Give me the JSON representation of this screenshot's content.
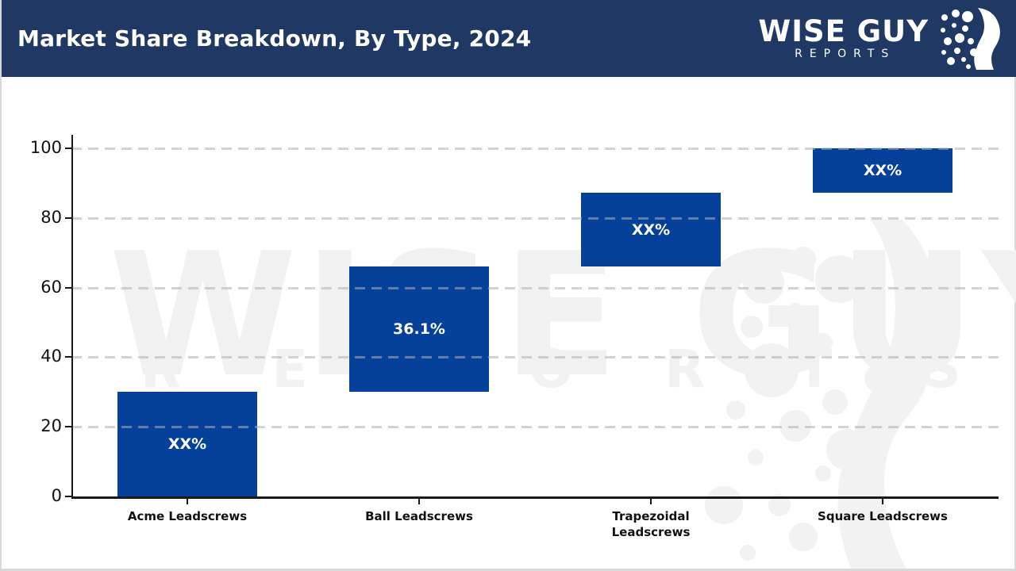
{
  "header": {
    "title": "Market Share Breakdown, By Type, 2024",
    "bg_color": "#203864",
    "logo": {
      "line1": "WISE GUY",
      "line2": "REPORTS"
    }
  },
  "watermark": {
    "line1": "WISE GUY",
    "line2": "R E P O R T S"
  },
  "chart_data": {
    "type": "bar",
    "subtype": "waterfall",
    "title": "Market Share Breakdown, By Type, 2024",
    "categories": [
      "Acme Leadscrews",
      "Ball Leadscrews",
      "Trapezoidal\nLeadscrews",
      "Square Leadscrews"
    ],
    "segments": [
      {
        "category": "Acme Leadscrews",
        "label": "XX%",
        "start": 0,
        "end": 30
      },
      {
        "category": "Ball Leadscrews",
        "label": "36.1%",
        "start": 30,
        "end": 66.1
      },
      {
        "category": "Trapezoidal Leadscrews",
        "label": "XX%",
        "start": 66.1,
        "end": 87.2
      },
      {
        "category": "Square Leadscrews",
        "label": "XX%",
        "start": 87.2,
        "end": 100
      }
    ],
    "ylim": [
      0,
      100
    ],
    "yticks": [
      0,
      20,
      40,
      60,
      80,
      100
    ],
    "grid": "dashed horizontal",
    "legend": "none",
    "bar_color": "#05419a",
    "bar_label_color": "#ffffff",
    "grid_color": "#d9d9d9"
  }
}
